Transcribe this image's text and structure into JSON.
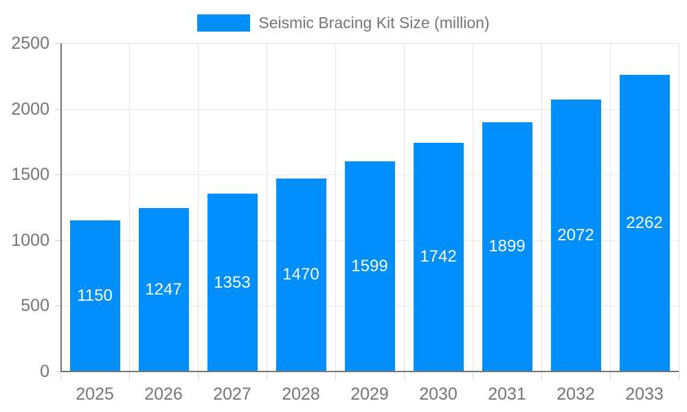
{
  "chart_data": {
    "type": "bar",
    "title": "Seismic Bracing Kit Size (million)",
    "xlabel": "",
    "ylabel": "",
    "categories": [
      "2025",
      "2026",
      "2027",
      "2028",
      "2029",
      "2030",
      "2031",
      "2032",
      "2033"
    ],
    "values": [
      1150,
      1247,
      1353,
      1470,
      1599,
      1742,
      1899,
      2072,
      2262
    ],
    "ylim": [
      0,
      2500
    ],
    "yticks": [
      0,
      500,
      1000,
      1500,
      2000,
      2500
    ],
    "grid": true,
    "legend_position": "top-center",
    "bar_color": "#008FFB",
    "value_label_color": "#ffffff",
    "axis_label_color": "#757575",
    "axis_line_color": "#757575",
    "grid_color": "#e7e7e7",
    "tick_color": "#cfcfcf"
  }
}
